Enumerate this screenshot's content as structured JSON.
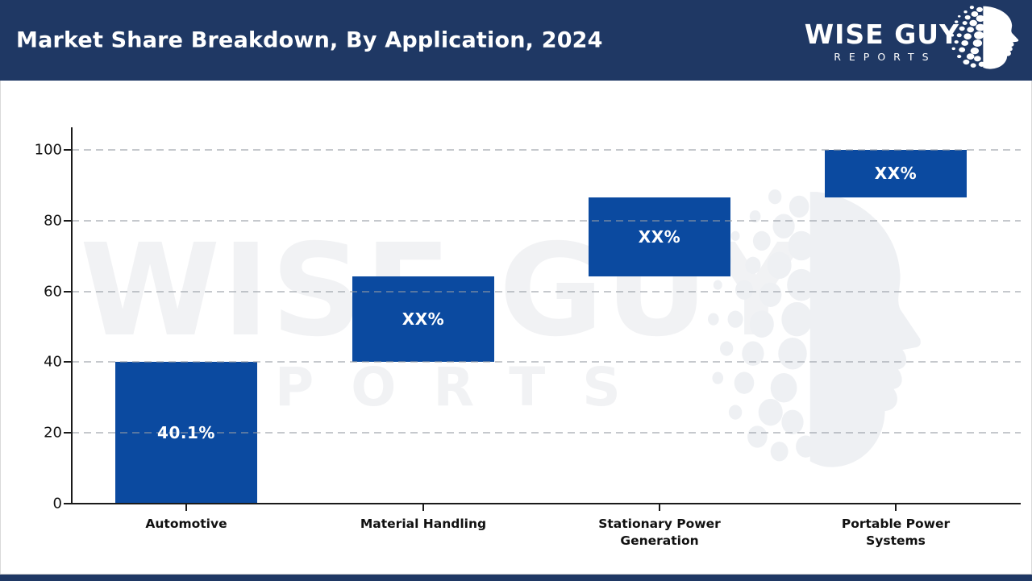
{
  "header": {
    "title": "Market Share Breakdown, By Application, 2024",
    "bg_color": "#1f3864",
    "logo": {
      "line1": "WISE GUY",
      "line2": "REPORTS"
    }
  },
  "watermark": {
    "line1": "WISE GUY",
    "line2": "REPORTS"
  },
  "chart_data": {
    "type": "bar",
    "variant": "floating-segment-breakdown",
    "title": "Market Share Breakdown, By Application, 2024",
    "categories": [
      "Automotive",
      "Material Handling",
      "Stationary Power Generation",
      "Portable Power Systems"
    ],
    "category_lines": [
      [
        "Automotive"
      ],
      [
        "Material Handling"
      ],
      [
        "Stationary Power",
        "Generation"
      ],
      [
        "Portable Power",
        "Systems"
      ]
    ],
    "segments": [
      {
        "category": "Automotive",
        "start": 0,
        "end": 40.1,
        "label": "40.1%"
      },
      {
        "category": "Material Handling",
        "start": 40.1,
        "end": 64.3,
        "label": "XX%"
      },
      {
        "category": "Stationary Power Generation",
        "start": 64.3,
        "end": 86.6,
        "label": "XX%"
      },
      {
        "category": "Portable Power Systems",
        "start": 86.6,
        "end": 100,
        "label": "XX%"
      }
    ],
    "xlabel": "",
    "ylabel": "",
    "ylim": [
      0,
      105
    ],
    "yticks": [
      0,
      20,
      40,
      60,
      80,
      100
    ],
    "grid": "horizontal-dashed",
    "legend": "none",
    "bar_color": "#0b4aa0",
    "bar_label_color": "#ffffff",
    "axis_color": "#1a1a1a"
  }
}
